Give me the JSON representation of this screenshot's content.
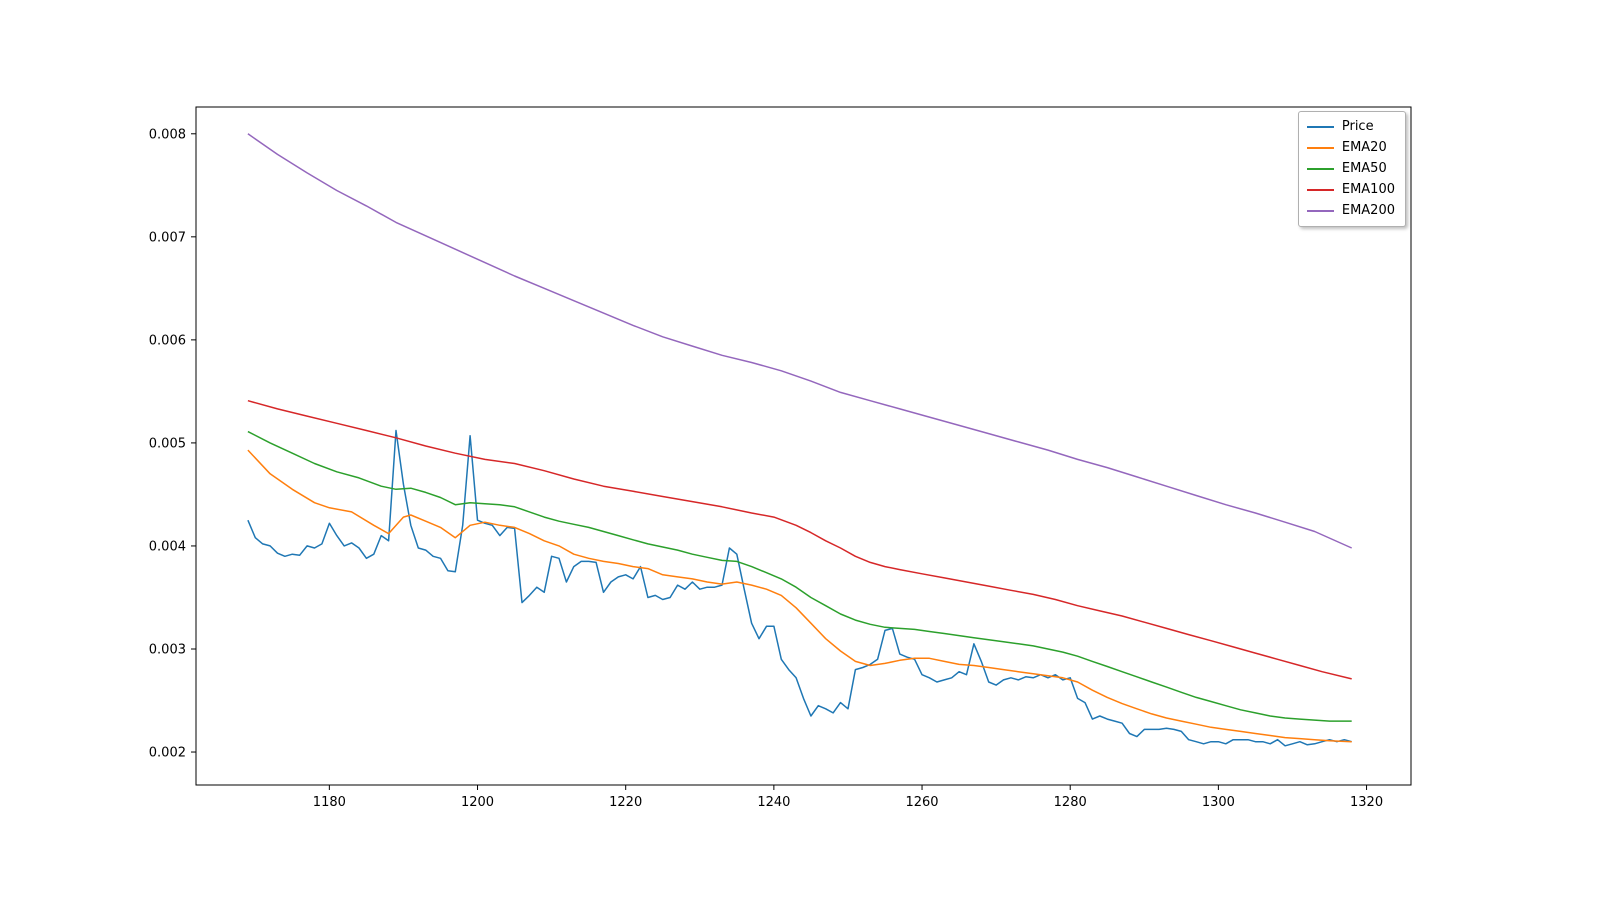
{
  "figure": {
    "background": "#ffffff",
    "axes_edge_color": "#000000",
    "tick_label_color": "#000000"
  },
  "chart_data": {
    "type": "line",
    "title": "",
    "xlabel": "",
    "ylabel": "",
    "grid": false,
    "legend_position": "upper right",
    "xlim": [
      1162,
      1326
    ],
    "ylim": [
      0.00168,
      0.00826
    ],
    "x_ticks": [
      1180,
      1200,
      1220,
      1240,
      1260,
      1280,
      1300,
      1320
    ],
    "x_tick_labels": [
      "1180",
      "1200",
      "1220",
      "1240",
      "1260",
      "1280",
      "1300",
      "1320"
    ],
    "y_ticks": [
      0.002,
      0.003,
      0.004,
      0.005,
      0.006,
      0.007,
      0.008
    ],
    "y_tick_labels": [
      "0.002",
      "0.003",
      "0.004",
      "0.005",
      "0.006",
      "0.007",
      "0.008"
    ],
    "series": [
      {
        "name": "Price",
        "color": "#1f77b4",
        "x_start": 1169,
        "x_step": 1,
        "y": [
          0.00425,
          0.00408,
          0.00402,
          0.004,
          0.00393,
          0.0039,
          0.00392,
          0.00391,
          0.004,
          0.00398,
          0.00402,
          0.00422,
          0.0041,
          0.004,
          0.00403,
          0.00398,
          0.00388,
          0.00392,
          0.0041,
          0.00405,
          0.00512,
          0.0046,
          0.0042,
          0.00398,
          0.00396,
          0.0039,
          0.00388,
          0.00376,
          0.00375,
          0.0042,
          0.00507,
          0.00425,
          0.00422,
          0.0042,
          0.0041,
          0.00418,
          0.00417,
          0.00345,
          0.00352,
          0.0036,
          0.00355,
          0.0039,
          0.00388,
          0.00365,
          0.0038,
          0.00385,
          0.00385,
          0.00384,
          0.00355,
          0.00365,
          0.0037,
          0.00372,
          0.00368,
          0.0038,
          0.0035,
          0.00352,
          0.00348,
          0.0035,
          0.00362,
          0.00358,
          0.00365,
          0.00358,
          0.0036,
          0.0036,
          0.00362,
          0.00398,
          0.00392,
          0.00358,
          0.00325,
          0.0031,
          0.00322,
          0.00322,
          0.0029,
          0.0028,
          0.00272,
          0.00252,
          0.00235,
          0.00245,
          0.00242,
          0.00238,
          0.00248,
          0.00242,
          0.0028,
          0.00282,
          0.00285,
          0.0029,
          0.00318,
          0.0032,
          0.00295,
          0.00292,
          0.0029,
          0.00275,
          0.00272,
          0.00268,
          0.0027,
          0.00272,
          0.00278,
          0.00275,
          0.00305,
          0.00288,
          0.00268,
          0.00265,
          0.0027,
          0.00272,
          0.0027,
          0.00273,
          0.00272,
          0.00275,
          0.00272,
          0.00275,
          0.0027,
          0.00272,
          0.00252,
          0.00248,
          0.00232,
          0.00235,
          0.00232,
          0.0023,
          0.00228,
          0.00218,
          0.00215,
          0.00222,
          0.00222,
          0.00222,
          0.00223,
          0.00222,
          0.0022,
          0.00212,
          0.0021,
          0.00208,
          0.0021,
          0.0021,
          0.00208,
          0.00212,
          0.00212,
          0.00212,
          0.0021,
          0.0021,
          0.00208,
          0.00212,
          0.00206,
          0.00208,
          0.0021,
          0.00207,
          0.00208,
          0.0021,
          0.00212,
          0.0021,
          0.00212,
          0.0021
        ]
      },
      {
        "name": "EMA20",
        "color": "#ff7f0e",
        "x": [
          1169,
          1172,
          1175,
          1178,
          1180,
          1183,
          1186,
          1188,
          1190,
          1191,
          1193,
          1195,
          1197,
          1199,
          1201,
          1203,
          1205,
          1207,
          1209,
          1211,
          1213,
          1215,
          1217,
          1219,
          1221,
          1223,
          1225,
          1227,
          1229,
          1231,
          1233,
          1235,
          1237,
          1239,
          1241,
          1243,
          1245,
          1247,
          1249,
          1251,
          1253,
          1255,
          1257,
          1259,
          1261,
          1263,
          1265,
          1267,
          1269,
          1271,
          1273,
          1275,
          1277,
          1279,
          1281,
          1283,
          1285,
          1287,
          1289,
          1291,
          1293,
          1295,
          1297,
          1299,
          1301,
          1303,
          1305,
          1307,
          1309,
          1311,
          1313,
          1315,
          1318
        ],
        "y": [
          0.00493,
          0.0047,
          0.00455,
          0.00442,
          0.00437,
          0.00433,
          0.0042,
          0.00412,
          0.00428,
          0.0043,
          0.00424,
          0.00418,
          0.00408,
          0.0042,
          0.00423,
          0.0042,
          0.00418,
          0.00412,
          0.00405,
          0.004,
          0.00392,
          0.00388,
          0.00385,
          0.00383,
          0.0038,
          0.00378,
          0.00372,
          0.0037,
          0.00368,
          0.00365,
          0.00363,
          0.00365,
          0.00362,
          0.00358,
          0.00352,
          0.0034,
          0.00325,
          0.0031,
          0.00298,
          0.00288,
          0.00284,
          0.00286,
          0.00289,
          0.00291,
          0.00291,
          0.00288,
          0.00285,
          0.00284,
          0.00282,
          0.0028,
          0.00278,
          0.00276,
          0.00274,
          0.00272,
          0.00268,
          0.0026,
          0.00253,
          0.00247,
          0.00242,
          0.00237,
          0.00233,
          0.0023,
          0.00227,
          0.00224,
          0.00222,
          0.0022,
          0.00218,
          0.00216,
          0.00214,
          0.00213,
          0.00212,
          0.00211,
          0.0021
        ]
      },
      {
        "name": "EMA50",
        "color": "#2ca02c",
        "x": [
          1169,
          1172,
          1175,
          1178,
          1181,
          1184,
          1187,
          1189,
          1191,
          1193,
          1195,
          1197,
          1199,
          1201,
          1203,
          1205,
          1207,
          1209,
          1211,
          1213,
          1215,
          1217,
          1219,
          1221,
          1223,
          1225,
          1227,
          1229,
          1231,
          1233,
          1235,
          1237,
          1239,
          1241,
          1243,
          1245,
          1247,
          1249,
          1251,
          1253,
          1255,
          1257,
          1259,
          1261,
          1263,
          1265,
          1267,
          1269,
          1271,
          1273,
          1275,
          1277,
          1279,
          1281,
          1283,
          1285,
          1287,
          1289,
          1291,
          1293,
          1295,
          1297,
          1299,
          1301,
          1303,
          1305,
          1307,
          1309,
          1311,
          1313,
          1315,
          1318
        ],
        "y": [
          0.00511,
          0.005,
          0.0049,
          0.0048,
          0.00472,
          0.00466,
          0.00458,
          0.00455,
          0.00456,
          0.00452,
          0.00447,
          0.0044,
          0.00442,
          0.00441,
          0.0044,
          0.00438,
          0.00433,
          0.00428,
          0.00424,
          0.00421,
          0.00418,
          0.00414,
          0.0041,
          0.00406,
          0.00402,
          0.00399,
          0.00396,
          0.00392,
          0.00389,
          0.00386,
          0.00385,
          0.0038,
          0.00374,
          0.00368,
          0.0036,
          0.0035,
          0.00342,
          0.00334,
          0.00328,
          0.00324,
          0.00321,
          0.0032,
          0.00319,
          0.00317,
          0.00315,
          0.00313,
          0.00311,
          0.00309,
          0.00307,
          0.00305,
          0.00303,
          0.003,
          0.00297,
          0.00293,
          0.00288,
          0.00283,
          0.00278,
          0.00273,
          0.00268,
          0.00263,
          0.00258,
          0.00253,
          0.00249,
          0.00245,
          0.00241,
          0.00238,
          0.00235,
          0.00233,
          0.00232,
          0.00231,
          0.0023,
          0.0023
        ]
      },
      {
        "name": "EMA100",
        "color": "#d62728",
        "x": [
          1169,
          1173,
          1177,
          1181,
          1185,
          1189,
          1193,
          1197,
          1201,
          1205,
          1209,
          1213,
          1217,
          1221,
          1225,
          1229,
          1233,
          1237,
          1240,
          1243,
          1245,
          1247,
          1249,
          1251,
          1253,
          1255,
          1257,
          1260,
          1263,
          1266,
          1269,
          1272,
          1275,
          1278,
          1281,
          1284,
          1287,
          1290,
          1293,
          1296,
          1299,
          1302,
          1305,
          1308,
          1311,
          1314,
          1318
        ],
        "y": [
          0.00541,
          0.00533,
          0.00526,
          0.00519,
          0.00512,
          0.00505,
          0.00497,
          0.0049,
          0.00484,
          0.0048,
          0.00473,
          0.00465,
          0.00458,
          0.00453,
          0.00448,
          0.00443,
          0.00438,
          0.00432,
          0.00428,
          0.0042,
          0.00413,
          0.00405,
          0.00398,
          0.0039,
          0.00384,
          0.0038,
          0.00377,
          0.00373,
          0.00369,
          0.00365,
          0.00361,
          0.00357,
          0.00353,
          0.00348,
          0.00342,
          0.00337,
          0.00332,
          0.00326,
          0.0032,
          0.00314,
          0.00308,
          0.00302,
          0.00296,
          0.0029,
          0.00284,
          0.00278,
          0.00271
        ]
      },
      {
        "name": "EMA200",
        "color": "#9467bd",
        "x": [
          1169,
          1173,
          1177,
          1181,
          1185,
          1189,
          1193,
          1197,
          1201,
          1205,
          1209,
          1213,
          1217,
          1221,
          1225,
          1229,
          1233,
          1237,
          1241,
          1245,
          1249,
          1253,
          1257,
          1261,
          1265,
          1269,
          1273,
          1277,
          1281,
          1285,
          1289,
          1293,
          1297,
          1301,
          1305,
          1309,
          1313,
          1318
        ],
        "y": [
          0.008,
          0.0078,
          0.00762,
          0.00745,
          0.0073,
          0.00714,
          0.00701,
          0.00688,
          0.00675,
          0.00662,
          0.0065,
          0.00638,
          0.00626,
          0.00614,
          0.00603,
          0.00594,
          0.00585,
          0.00578,
          0.0057,
          0.0056,
          0.00549,
          0.00541,
          0.00533,
          0.00525,
          0.00517,
          0.00509,
          0.00501,
          0.00493,
          0.00484,
          0.00476,
          0.00467,
          0.00458,
          0.00449,
          0.0044,
          0.00432,
          0.00423,
          0.00414,
          0.00398
        ]
      }
    ]
  }
}
